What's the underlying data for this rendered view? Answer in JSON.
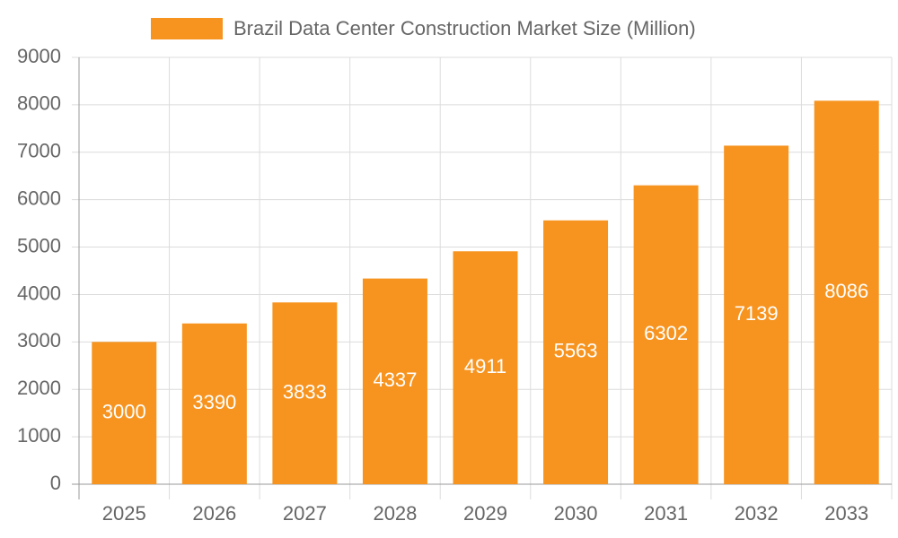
{
  "chart_data": {
    "type": "bar",
    "categories": [
      "2025",
      "2026",
      "2027",
      "2028",
      "2029",
      "2030",
      "2031",
      "2032",
      "2033"
    ],
    "series": [
      {
        "name": "Brazil Data Center Construction Market Size (Million)",
        "color": "#f7941f",
        "values": [
          3000,
          3390,
          3833,
          4337,
          4911,
          5563,
          6302,
          7139,
          8086
        ]
      }
    ],
    "ylim": [
      0,
      9000
    ],
    "yticks": [
      0,
      1000,
      2000,
      3000,
      4000,
      5000,
      6000,
      7000,
      8000,
      9000
    ],
    "grid": true,
    "legend": "top"
  }
}
